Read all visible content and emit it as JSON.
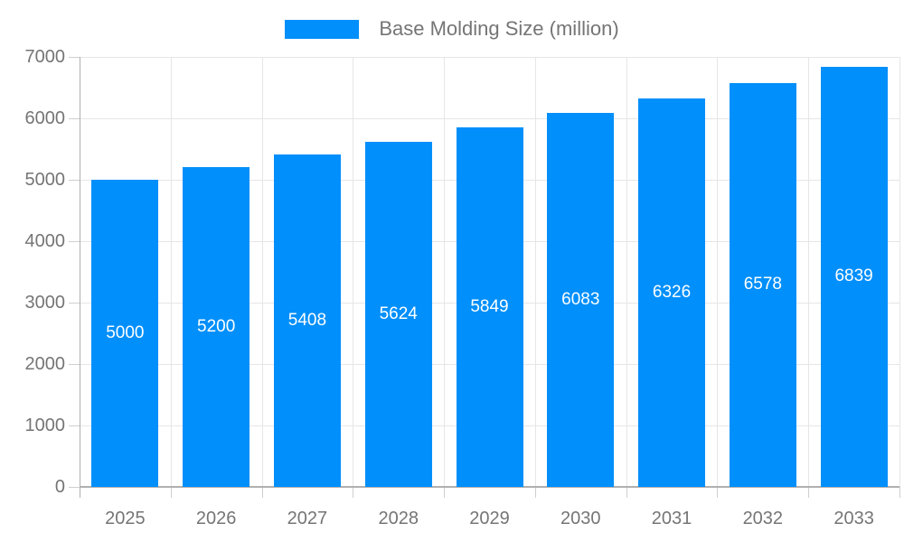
{
  "chart_data": {
    "type": "bar",
    "categories": [
      "2025",
      "2026",
      "2027",
      "2028",
      "2029",
      "2030",
      "2031",
      "2032",
      "2033"
    ],
    "series": [
      {
        "name": "Base Molding Size (million)",
        "values": [
          5000,
          5200,
          5408,
          5624,
          5849,
          6083,
          6326,
          6578,
          6839
        ]
      }
    ],
    "title": "Base Molding Size (million)",
    "xlabel": "",
    "ylabel": "",
    "ylim": [
      0,
      7000
    ],
    "ytick_step": 1000,
    "yticks": [
      0,
      1000,
      2000,
      3000,
      4000,
      5000,
      6000,
      7000
    ],
    "grid": true,
    "legend_position": "top",
    "bar_labels_visible": true
  },
  "colors": {
    "bar": "#008FFB",
    "grid": "#e6e6e6",
    "tick": "#cfcfcf",
    "axis": "#b0b0b0",
    "text": "#757575",
    "bar_label": "#ffffff",
    "background": "#ffffff"
  }
}
